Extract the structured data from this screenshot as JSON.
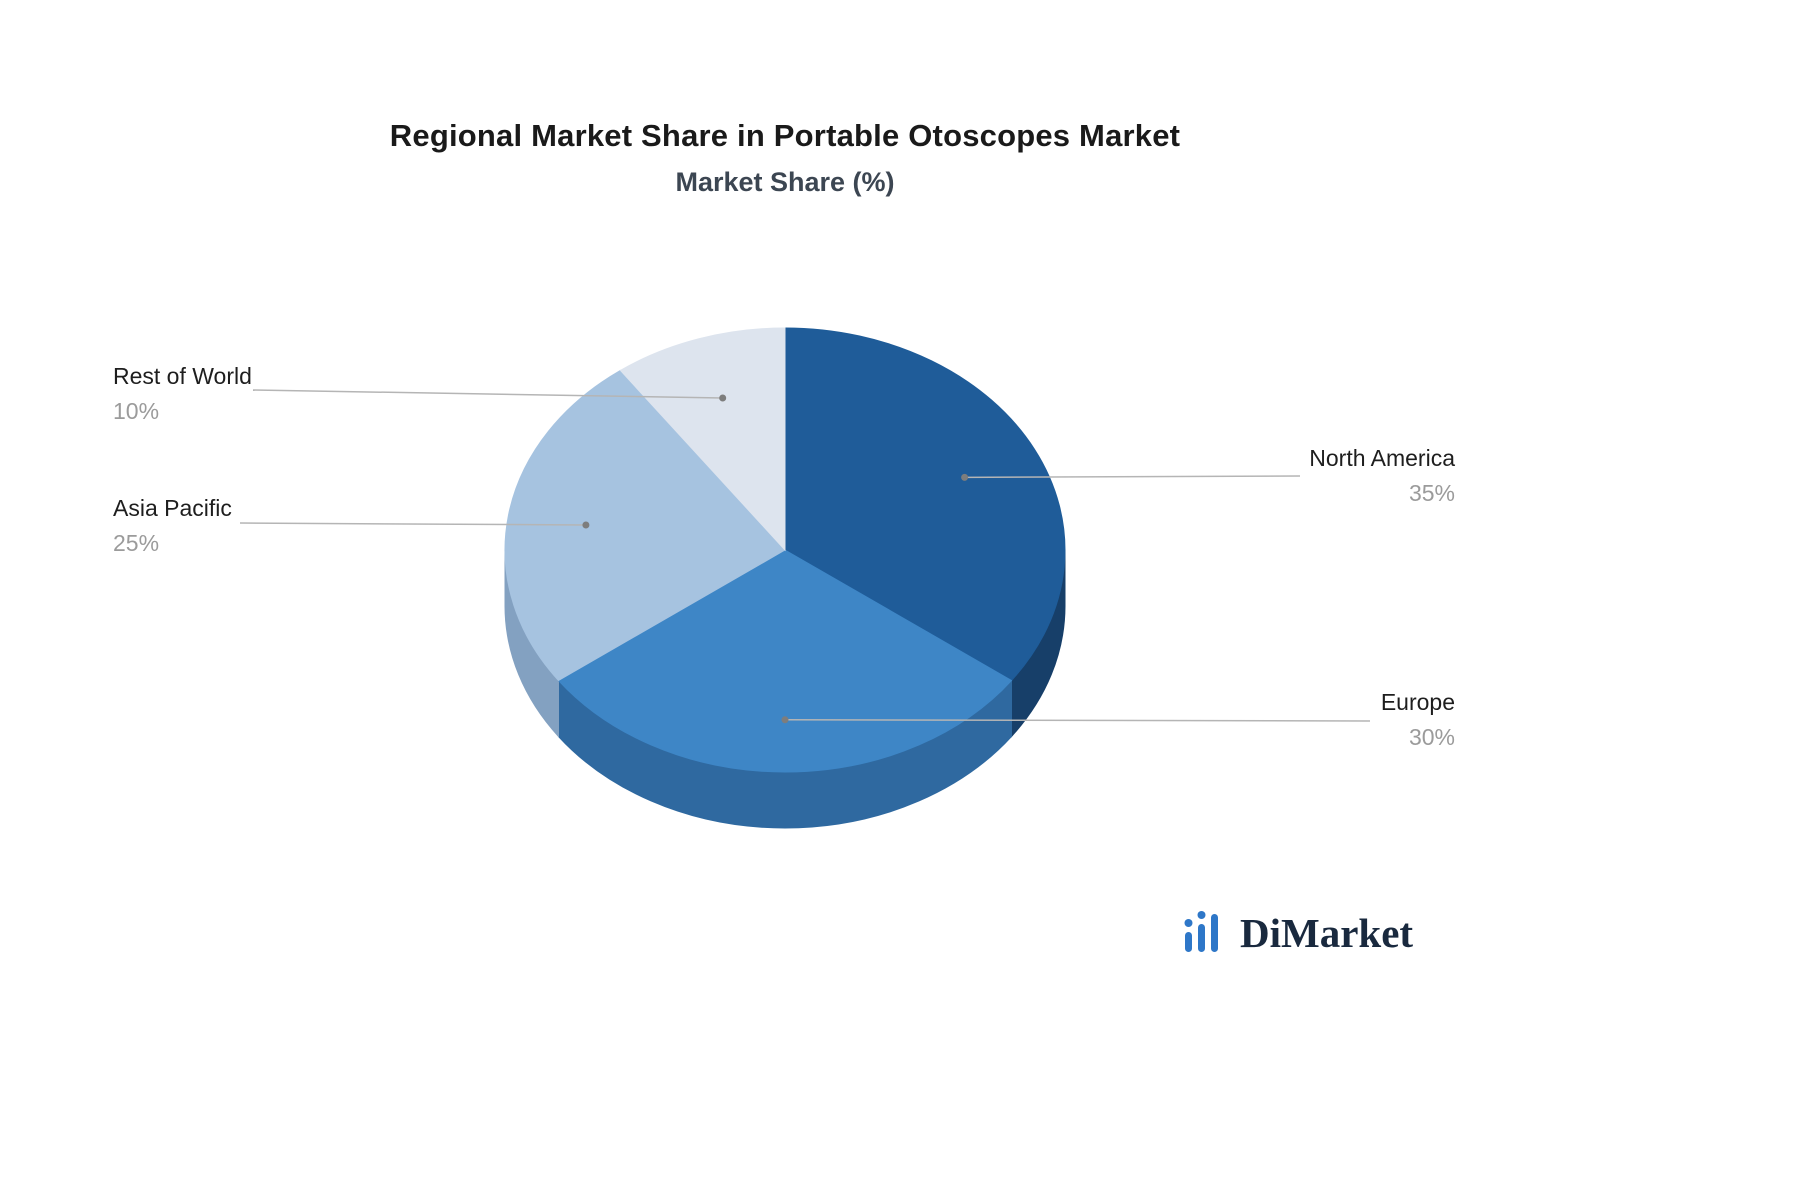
{
  "chart_data": {
    "type": "pie",
    "title": "Regional Market Share in Portable Otoscopes Market",
    "subtitle": "Market Share (%)",
    "unit": "%",
    "direction": "clockwise",
    "start_angle_deg": 0,
    "effect_3d": true,
    "legend_position": "callout-labels",
    "slices": [
      {
        "label": "North America",
        "value": 35,
        "pct_label": "35%",
        "color": "#1f5c99",
        "side_color": "#173f69"
      },
      {
        "label": "Europe",
        "value": 30,
        "pct_label": "30%",
        "color": "#3e86c6",
        "side_color": "#2f69a0"
      },
      {
        "label": "Asia Pacific",
        "value": 25,
        "pct_label": "25%",
        "color": "#a6c3e0",
        "side_color": "#83a1c1"
      },
      {
        "label": "Rest of World",
        "value": 10,
        "pct_label": "10%",
        "color": "#dde4ee",
        "side_color": "#b9c4d3"
      }
    ],
    "callout_line_color": "#b5b5b5",
    "callout_dot_color": "#7d7d7d"
  },
  "branding": {
    "logo_text": "DiMarket",
    "logo_color": "#2e77c8"
  }
}
